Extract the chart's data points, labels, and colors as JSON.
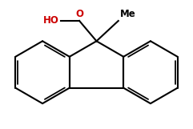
{
  "bg_color": "#ffffff",
  "line_color": "#000000",
  "text_color_ho": "#cc0000",
  "text_color_o": "#cc0000",
  "text_color_me": "#000000",
  "bond_lw": 1.5,
  "figsize": [
    2.41,
    1.61
  ],
  "dpi": 100,
  "label_HO": "HO",
  "label_O": "O",
  "label_Me": "Me"
}
